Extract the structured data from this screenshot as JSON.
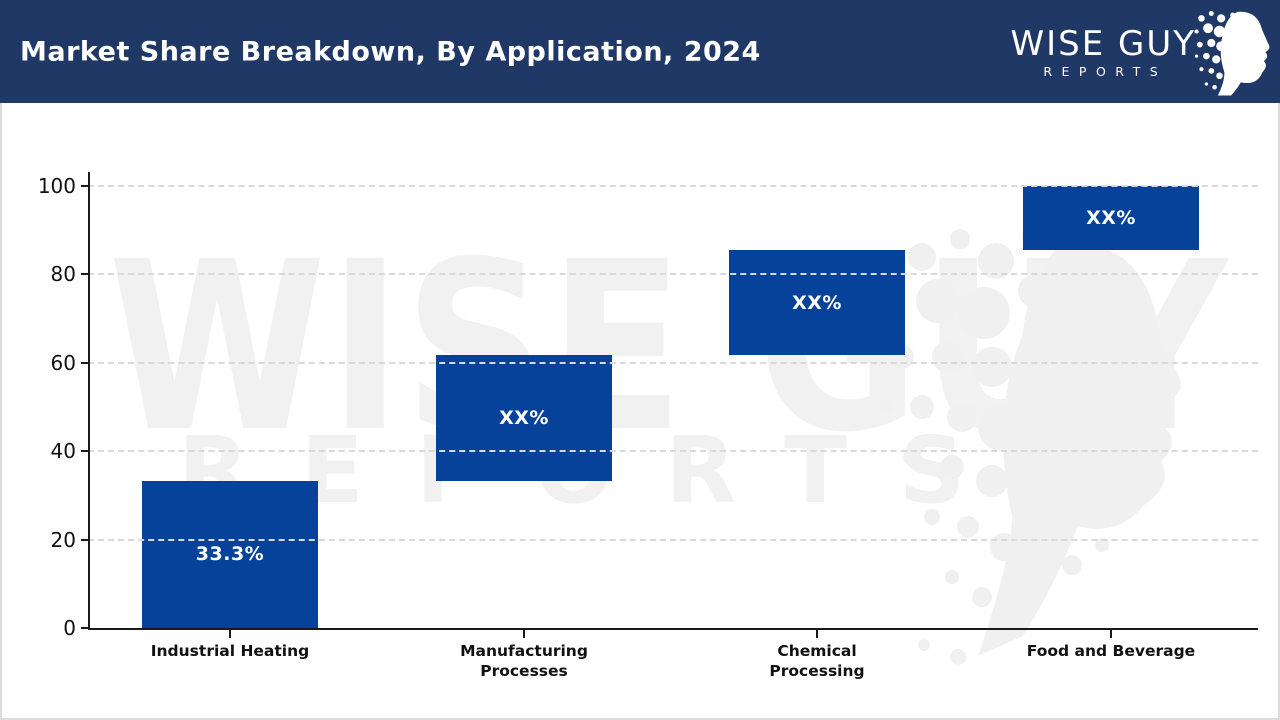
{
  "header": {
    "title": "Market Share Breakdown, By Application, 2024",
    "logo": {
      "name": "WISE GUY",
      "sub": "REPORTS"
    }
  },
  "watermark": {
    "name": "WISE GUY",
    "sub": "REPORTS"
  },
  "colors": {
    "header_bg": "#203866",
    "bar": "#07429a",
    "bar_label": "#ffffff",
    "grid": "#d9d9d9",
    "axis": "#1a1a1a",
    "tick_label": "#111111",
    "watermark": "#f1f1f1",
    "title_text": "#ffffff"
  },
  "chart_data": {
    "type": "bar",
    "subtype": "waterfall",
    "title": "Market Share Breakdown, By Application, 2024",
    "categories": [
      "Industrial Heating",
      "Manufacturing Processes",
      "Chemical Processing",
      "Food and Beverage"
    ],
    "category_label_lines": [
      [
        "Industrial Heating"
      ],
      [
        "Manufacturing",
        "Processes"
      ],
      [
        "Chemical",
        "Processing"
      ],
      [
        "Food and Beverage"
      ]
    ],
    "segments": [
      {
        "category": "Industrial Heating",
        "start": 0,
        "end": 33.3,
        "delta": 33.3,
        "label": "33.3%"
      },
      {
        "category": "Manufacturing Processes",
        "start": 33.3,
        "end": 61.7,
        "delta": 28.4,
        "label": "XX%"
      },
      {
        "category": "Chemical Processing",
        "start": 61.7,
        "end": 85.5,
        "delta": 23.8,
        "label": "XX%"
      },
      {
        "category": "Food and Beverage",
        "start": 85.5,
        "end": 100,
        "delta": 14.5,
        "label": "XX%"
      }
    ],
    "ylim": [
      0,
      100
    ],
    "yticks": [
      0,
      20,
      40,
      60,
      80,
      100
    ],
    "xlabel": "",
    "ylabel": "",
    "grid": "horizontal-dashed",
    "legend": "none"
  }
}
